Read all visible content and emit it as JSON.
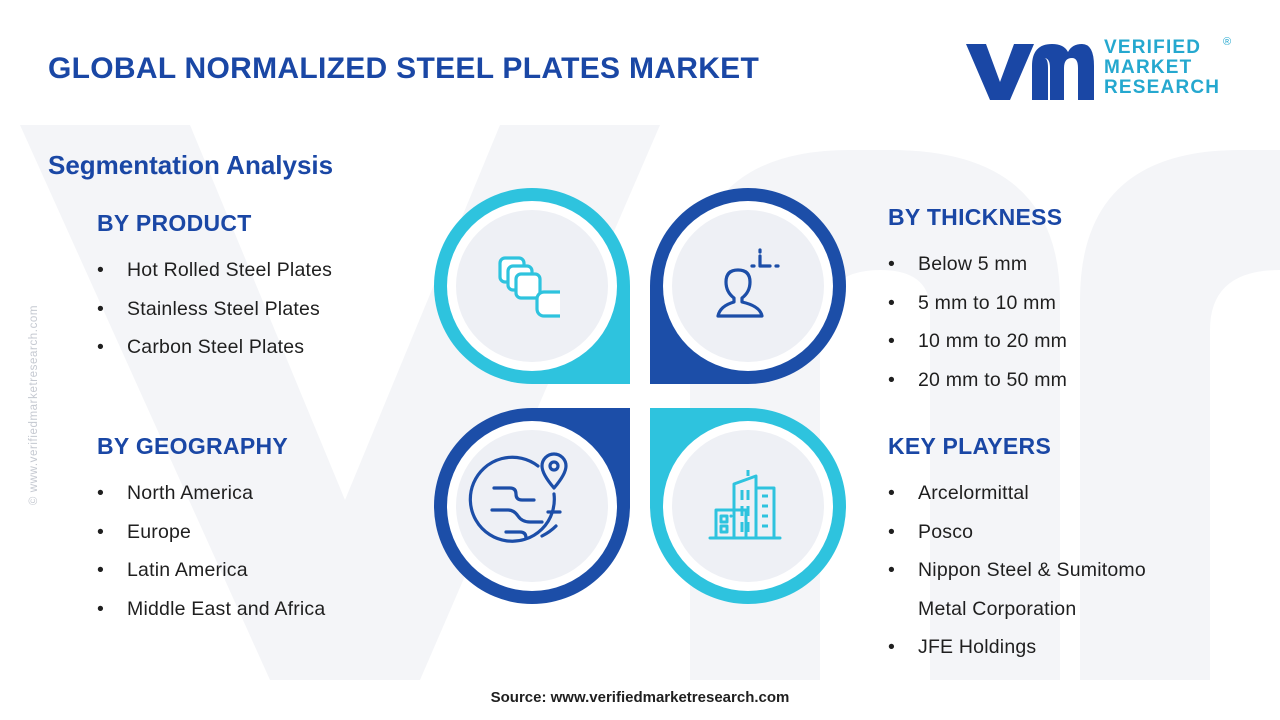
{
  "header": {
    "title": "GLOBAL NORMALIZED STEEL PLATES MARKET",
    "subtitle": "Segmentation Analysis"
  },
  "logo": {
    "line1": "VERIFIED",
    "line2": "MARKET",
    "line3": "RESEARCH",
    "registered": "®"
  },
  "segments": {
    "product": {
      "heading": "BY PRODUCT",
      "items": [
        "Hot Rolled Steel Plates",
        "Stainless Steel Plates",
        "Carbon Steel Plates"
      ]
    },
    "geography": {
      "heading": "BY GEOGRAPHY",
      "items": [
        "North America",
        "Europe",
        "Latin America",
        "Middle East and Africa"
      ]
    },
    "thickness": {
      "heading": "BY THICKNESS",
      "items": [
        "Below 5 mm",
        "5 mm to 10 mm",
        "10 mm to 20 mm",
        "20 mm to 50 mm"
      ]
    },
    "key_players": {
      "heading": "KEY PLAYERS",
      "items": [
        "Arcelormittal",
        "Posco",
        "Nippon Steel & Sumitomo",
        "Metal Corporation",
        "JFE Holdings"
      ],
      "bullets": [
        true,
        true,
        true,
        false,
        true
      ]
    }
  },
  "icons": {
    "top_left": "stacked-cards-icon",
    "top_right": "person-target-icon",
    "bottom_left": "globe-location-icon",
    "bottom_right": "city-buildings-icon"
  },
  "colors": {
    "primary_blue": "#1a47a5",
    "cyan": "#2ec3de",
    "dark_blue": "#1c4ea8",
    "disc_fill": "#eef0f5"
  },
  "watermark": "© www.verifiedmarketresearch.com",
  "footer": {
    "source": "Source: www.verifiedmarketresearch.com"
  }
}
